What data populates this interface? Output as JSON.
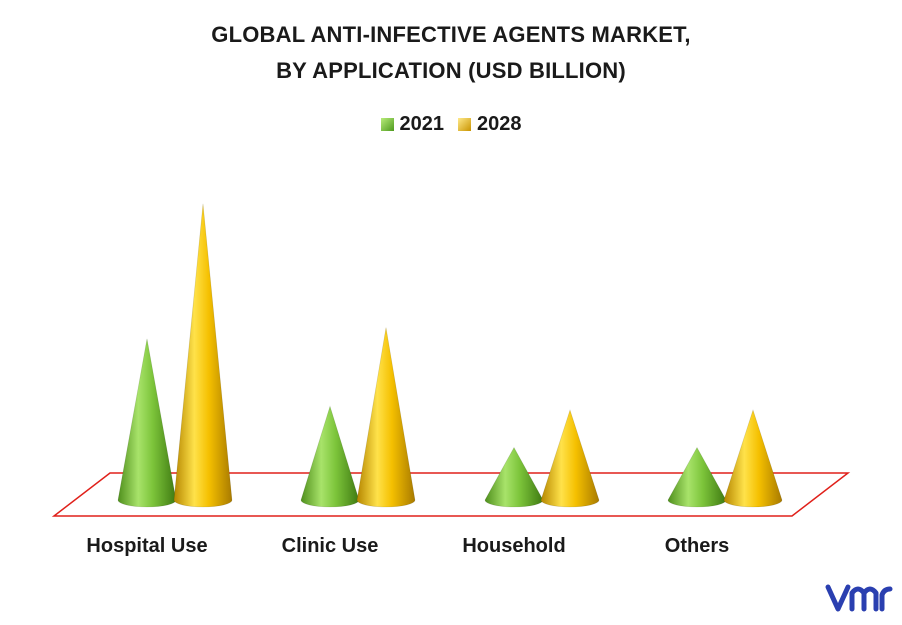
{
  "chart_data": {
    "type": "bar",
    "title": "GLOBAL ANTI-INFECTIVE AGENTS MARKET,",
    "subtitle": "BY APPLICATION (USD BILLION)",
    "categories": [
      "Hospital Use",
      "Clinic Use",
      "Household",
      "Others"
    ],
    "series": [
      {
        "name": "2021",
        "values": [
          4.3,
          2.5,
          1.4,
          1.4
        ],
        "color": "#7dc83a"
      },
      {
        "name": "2028",
        "values": [
          7.9,
          4.6,
          2.4,
          2.4
        ],
        "color": "#f5c000"
      }
    ],
    "ylim": [
      0,
      8
    ],
    "xlabel": "",
    "ylabel": "",
    "legend_position": "top-center",
    "grid": false,
    "mark_shape": "cone",
    "floor_outline_color": "#e0201a"
  },
  "logo": {
    "icon": "vmr-logo-icon",
    "text": "vmr",
    "color": "#2a3fb0"
  }
}
